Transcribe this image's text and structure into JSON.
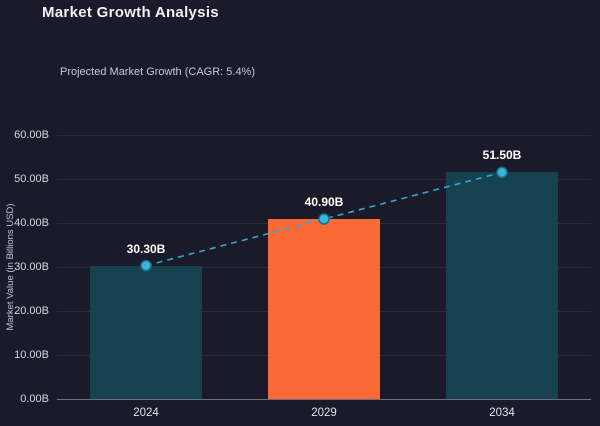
{
  "header": {
    "title": "Market Growth Analysis",
    "subtitle": "Projected Market Growth (CAGR: 5.4%)"
  },
  "chart_data": {
    "type": "bar",
    "title": "Market Growth Analysis",
    "subtitle": "Projected Market Growth (CAGR: 5.4%)",
    "categories": [
      "2024",
      "2029",
      "2034"
    ],
    "values": [
      30.3,
      40.9,
      51.5
    ],
    "value_labels": [
      "30.30B",
      "40.90B",
      "51.50B"
    ],
    "series": [
      {
        "name": "Market Value",
        "values": [
          30.3,
          40.9,
          51.5
        ]
      }
    ],
    "xlabel": "",
    "ylabel": "Market Value (in Billions USD)",
    "ylim": [
      0,
      60
    ],
    "ytick_step": 10,
    "ytick_labels": [
      "0.00B",
      "10.00B",
      "20.00B",
      "30.00B",
      "40.00B",
      "50.00B",
      "60.00B"
    ],
    "grid": true,
    "legend": "none",
    "bar_colors": [
      "#16414f",
      "#fb6a36",
      "#16414f"
    ],
    "trend_line": {
      "style": "dashed",
      "color": "#2ea9cf",
      "marker_color": "#38b6da",
      "marker_edge_color": "#1c6f8d",
      "values": [
        30.3,
        40.9,
        51.5
      ]
    }
  },
  "colors": {
    "background": "#1b1a2b",
    "title_text": "#f2f2f5",
    "subtitle_text": "#c9c9d3",
    "tick_text": "#d6d6de",
    "grid_line": "#2c2b3e",
    "axis_line": "#6f6f7c",
    "bar_teal": "#16414f",
    "bar_orange": "#fb6a36",
    "accent_cyan": "#2ea9cf"
  }
}
